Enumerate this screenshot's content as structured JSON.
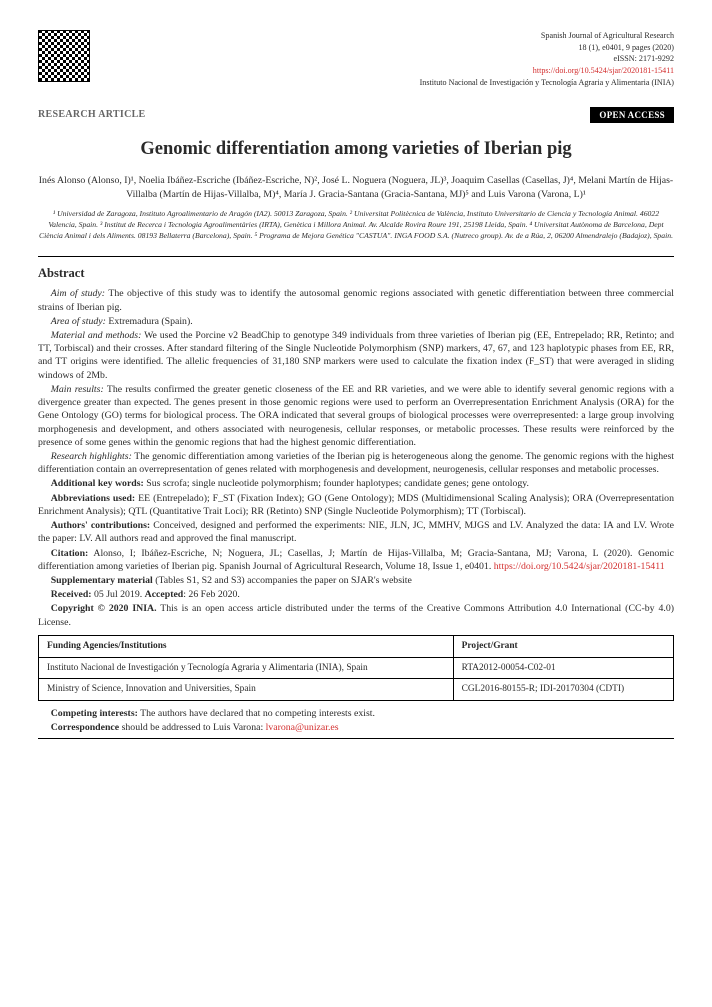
{
  "journal": {
    "name": "Spanish Journal of Agricultural Research",
    "issue": "18 (1), e0401, 9 pages (2020)",
    "eissn": "eISSN: 2171-9292",
    "doi": "https://doi.org/10.5424/sjar/2020181-15411",
    "institute": "Instituto Nacional de Investigación y Tecnología Agraria y Alimentaria (INIA)"
  },
  "labels": {
    "article_type": "RESEARCH ARTICLE",
    "open_access": "OPEN ACCESS",
    "abstract_heading": "Abstract"
  },
  "title": "Genomic differentiation among varieties of Iberian pig",
  "authors": "Inés Alonso (Alonso, I)¹, Noelia Ibáñez-Escriche (Ibáñez-Escriche, N)², José L. Noguera (Noguera, JL)³, Joaquim Casellas (Casellas, J)⁴, Melani Martín de Hijas-Villalba (Martín de Hijas-Villalba, M)⁴, María J. Gracia-Santana (Gracia-Santana, MJ)⁵ and Luis Varona (Varona, L)¹",
  "affiliations": "¹ Universidad de Zaragoza, Instituto Agroalimentario de Aragón (IA2). 50013 Zaragoza, Spain.  ² Universitat Politècnica de València, Instituto Universitario de Ciencia y Tecnología Animal. 46022 Valencia, Spain.  ³ Institut de Recerca i Tecnologia Agroalimentàries (IRTA), Genètica i Millora Animal. Av. Alcalde Rovira Roure 191, 25198 Lleida, Spain.  ⁴ Universitat Autònoma de Barcelona, Dept Ciència Animal i dels Aliments. 08193 Bellaterra (Barcelona), Spain.  ⁵ Programa de Mejora Genética \"CASTUA\". INGA FOOD S.A. (Nutreco group). Av. de a Rúa, 2, 06200 Almendralejo (Badajoz), Spain.",
  "abstract": {
    "aim_label": "Aim of study:",
    "aim": " The objective of this study was to identify the autosomal genomic regions associated with genetic differentiation between three commercial strains of Iberian pig.",
    "area_label": "Area of study:",
    "area": " Extremadura (Spain).",
    "methods_label": "Material and methods:",
    "methods": " We used the Porcine v2 BeadChip to genotype 349 individuals from three varieties of Iberian pig (EE, Entrepelado; RR, Retinto; and TT, Torbiscal) and their crosses. After standard filtering of the Single Nucleotide Polymorphism (SNP) markers, 47, 67, and 123 haplotypic phases from EE, RR, and TT origins were identified. The allelic frequencies of 31,180 SNP markers were used to calculate the fixation index (F_ST) that were averaged in sliding windows of 2Mb.",
    "results_label": "Main results:",
    "results": " The results confirmed the greater genetic closeness of the EE and RR varieties, and we were able to identify several genomic regions with a divergence greater than expected. The genes present in those genomic regions were used to perform an Overrepresentation Enrichment Analysis (ORA) for the Gene Ontology (GO) terms for biological process. The ORA indicated that several groups of biological processes were overrepresented: a large group involving morphogenesis and development, and others associated with neurogenesis, cellular responses, or metabolic processes. These results were reinforced by the presence of some genes within the genomic regions that had the highest genomic differentiation.",
    "highlights_label": "Research highlights:",
    "highlights": " The genomic differentiation among varieties of the Iberian pig is heterogeneous along the genome. The genomic regions with the highest differentiation contain an overrepresentation of genes related with morphogenesis and development, neurogenesis, cellular responses and metabolic processes.",
    "keywords_label": "Additional key words:",
    "keywords": " Sus scrofa; single nucleotide polymorphism; founder haplotypes; candidate genes; gene ontology.",
    "abbrev_label": "Abbreviations used:",
    "abbrev": " EE (Entrepelado); F_ST (Fixation Index); GO (Gene Ontology); MDS (Multidimensional Scaling Analysis); ORA (Overrepresentation Enrichment Analysis); QTL (Quantitative Trait Loci); RR (Retinto) SNP (Single Nucleotide Polymorphism); TT (Torbiscal).",
    "contrib_label": "Authors' contributions:",
    "contrib": " Conceived, designed and performed the experiments: NIE, JLN, JC, MMHV, MJGS and LV. Analyzed the data: IA and LV. Wrote the paper: LV. All authors read and approved the final manuscript.",
    "citation_label": "Citation:",
    "citation": " Alonso, I; Ibáñez-Escriche, N; Noguera, JL; Casellas, J; Martín de Hijas-Villalba, M; Gracia-Santana, MJ; Varona, L (2020). Genomic differentiation among varieties of Iberian pig. Spanish Journal of Agricultural Research, Volume 18, Issue 1, e0401. ",
    "citation_doi": "https://doi.org/10.5424/sjar/2020181-15411",
    "supp_label": "Supplementary material",
    "supp": " (Tables S1, S2 and S3) accompanies the paper on SJAR's website",
    "received_label": "Received:",
    "received": " 05 Jul 2019. ",
    "accepted_label": "Accepted",
    "accepted": ": 26 Feb 2020.",
    "copyright_label": "Copyright © 2020 INIA.",
    "copyright": " This is an open access article distributed under the terms of the Creative Commons Attribution 4.0 International (CC-by 4.0) License."
  },
  "funding": {
    "header_inst": "Funding Agencies/Institutions",
    "header_grant": "Project/Grant",
    "rows": [
      {
        "inst": "Instituto Nacional de Investigación y Tecnología Agraria y Alimentaria (INIA), Spain",
        "grant": "RTA2012-00054-C02-01"
      },
      {
        "inst": "Ministry of Science, Innovation and Universities, Spain",
        "grant": "CGL2016-80155-R; IDI-20170304 (CDTI)"
      }
    ]
  },
  "footer": {
    "competing_label": "Competing interests:",
    "competing": " The authors have declared that no competing interests exist.",
    "corr_label": "Correspondence",
    "corr": " should be addressed to Luis Varona: ",
    "corr_email": "lvarona@unizar.es"
  }
}
